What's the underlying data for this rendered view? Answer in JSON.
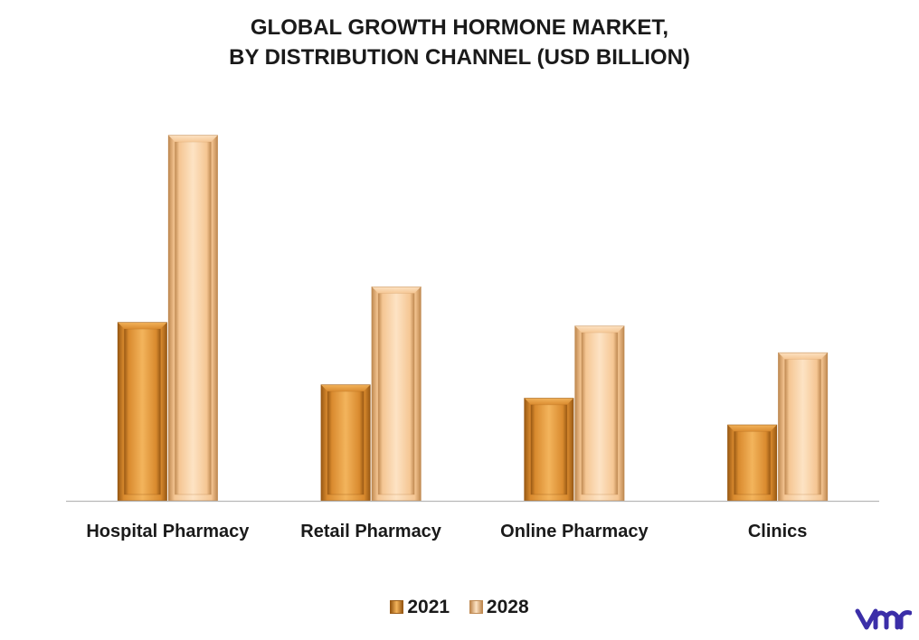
{
  "chart_data": {
    "type": "bar",
    "title_lines": [
      "GLOBAL GROWTH HORMONE MARKET,",
      "BY DISTRIBUTION CHANNEL (USD BILLION)"
    ],
    "categories": [
      "Hospital Pharmacy",
      "Retail Pharmacy",
      "Online Pharmacy",
      "Clinics"
    ],
    "series": [
      {
        "name": "2021",
        "values": [
          2.0,
          1.3,
          1.15,
          0.85
        ]
      },
      {
        "name": "2028",
        "values": [
          4.1,
          2.4,
          1.96,
          1.66
        ]
      }
    ],
    "ylim": [
      0,
      4.2
    ],
    "grid": false,
    "legend_position": "bottom",
    "colors": {
      "2021": {
        "light": "#f3b45c",
        "mid": "#d98a2e",
        "dark": "#9a5a14"
      },
      "2028": {
        "light": "#fde3c4",
        "mid": "#f5c693",
        "dark": "#c08a52"
      }
    }
  },
  "brand": {
    "logo_icon": "vmr-logo-icon",
    "color": "#3b2ea8"
  }
}
